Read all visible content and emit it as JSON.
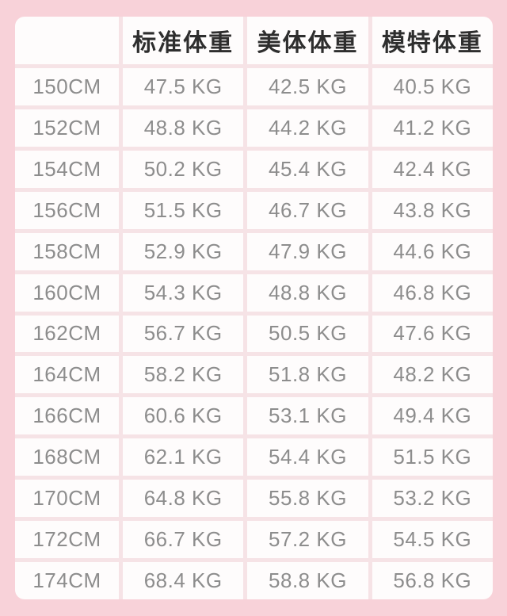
{
  "page": {
    "background_color": "#f8d2d9",
    "table_gap_color": "#f6e3e6",
    "cell_color": "#fefcfc",
    "header_text_color": "#2e2e2e",
    "body_text_color": "#8d8d8d"
  },
  "chart_data": {
    "type": "table",
    "title": "",
    "columns": [
      "",
      "标准体重",
      "美体体重",
      "模特体重"
    ],
    "rows": [
      [
        "150CM",
        "47.5 KG",
        "42.5 KG",
        "40.5 KG"
      ],
      [
        "152CM",
        "48.8 KG",
        "44.2 KG",
        "41.2 KG"
      ],
      [
        "154CM",
        "50.2 KG",
        "45.4 KG",
        "42.4 KG"
      ],
      [
        "156CM",
        "51.5 KG",
        "46.7 KG",
        "43.8 KG"
      ],
      [
        "158CM",
        "52.9 KG",
        "47.9 KG",
        "44.6 KG"
      ],
      [
        "160CM",
        "54.3 KG",
        "48.8 KG",
        "46.8 KG"
      ],
      [
        "162CM",
        "56.7 KG",
        "50.5 KG",
        "47.6 KG"
      ],
      [
        "164CM",
        "58.2 KG",
        "51.8 KG",
        "48.2 KG"
      ],
      [
        "166CM",
        "60.6 KG",
        "53.1 KG",
        "49.4 KG"
      ],
      [
        "168CM",
        "62.1 KG",
        "54.4 KG",
        "51.5 KG"
      ],
      [
        "170CM",
        "64.8 KG",
        "55.8 KG",
        "53.2 KG"
      ],
      [
        "172CM",
        "66.7 KG",
        "57.2 KG",
        "54.5 KG"
      ],
      [
        "174CM",
        "68.4 KG",
        "58.8 KG",
        "56.8 KG"
      ]
    ]
  }
}
